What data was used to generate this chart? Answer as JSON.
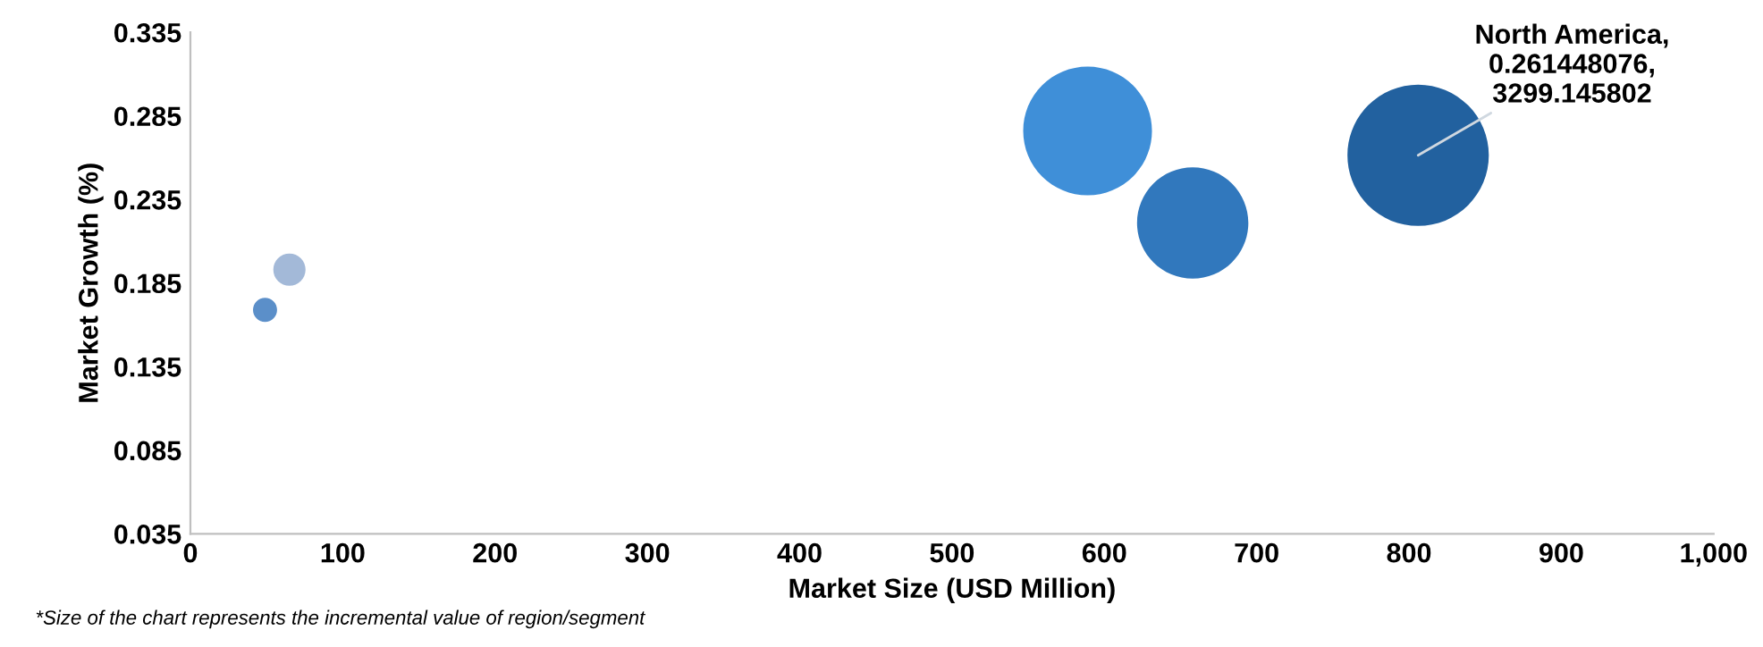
{
  "chart_data": {
    "type": "bubble",
    "xlabel": "Market Size (USD Million)",
    "ylabel": "Market Growth (%)",
    "x": [
      49,
      65,
      589,
      658,
      806
    ],
    "values": [
      0.169,
      0.193,
      0.276,
      0.221,
      0.261448076
    ],
    "sizes": [
      0.029,
      0.052,
      0.83,
      0.62,
      1
    ],
    "colors": [
      "#5b8fc9",
      "#a3b9d8",
      "#3f8fd8",
      "#3178bd",
      "#22619f"
    ],
    "xlim": [
      0,
      1000
    ],
    "xticks": [
      0,
      100,
      200,
      300,
      400,
      500,
      600,
      700,
      800,
      900,
      {
        "value": 1000,
        "label": "1,000"
      }
    ],
    "ylim": [
      0.035,
      0.335
    ],
    "yticks": [
      0.035,
      0.085,
      0.135,
      0.185,
      0.235,
      0.285,
      0.335
    ],
    "grid": false,
    "legend": false,
    "annotations": [
      {
        "text": "North America,\n0.261448076,\n3299.145802",
        "x": 806,
        "y": 0.261448076
      },
      "*Size of the chart represents the incremental value of region/segment"
    ]
  }
}
